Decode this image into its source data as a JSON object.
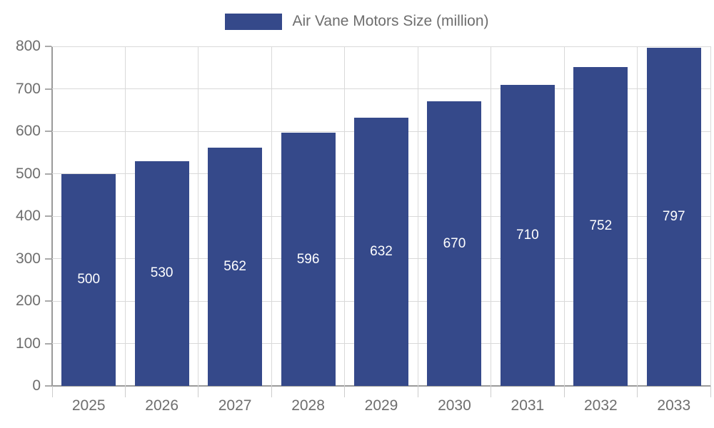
{
  "chart_data": {
    "type": "bar",
    "legend_label": "Air Vane Motors Size (million)",
    "categories": [
      "2025",
      "2026",
      "2027",
      "2028",
      "2029",
      "2030",
      "2031",
      "2032",
      "2033"
    ],
    "values": [
      500,
      530,
      562,
      596,
      632,
      670,
      710,
      752,
      797
    ],
    "title": "",
    "xlabel": "",
    "ylabel": "",
    "ylim": [
      0,
      800
    ],
    "ytick_step": 100,
    "grid": true,
    "legend_position": "top-center",
    "colors": {
      "bar": "#35498a",
      "bar_value_label": "#ffffff",
      "axis_text": "#6e6e6e",
      "grid": "#d9d9d9",
      "axis_line": "#9a9a9a",
      "background": "#ffffff"
    }
  }
}
